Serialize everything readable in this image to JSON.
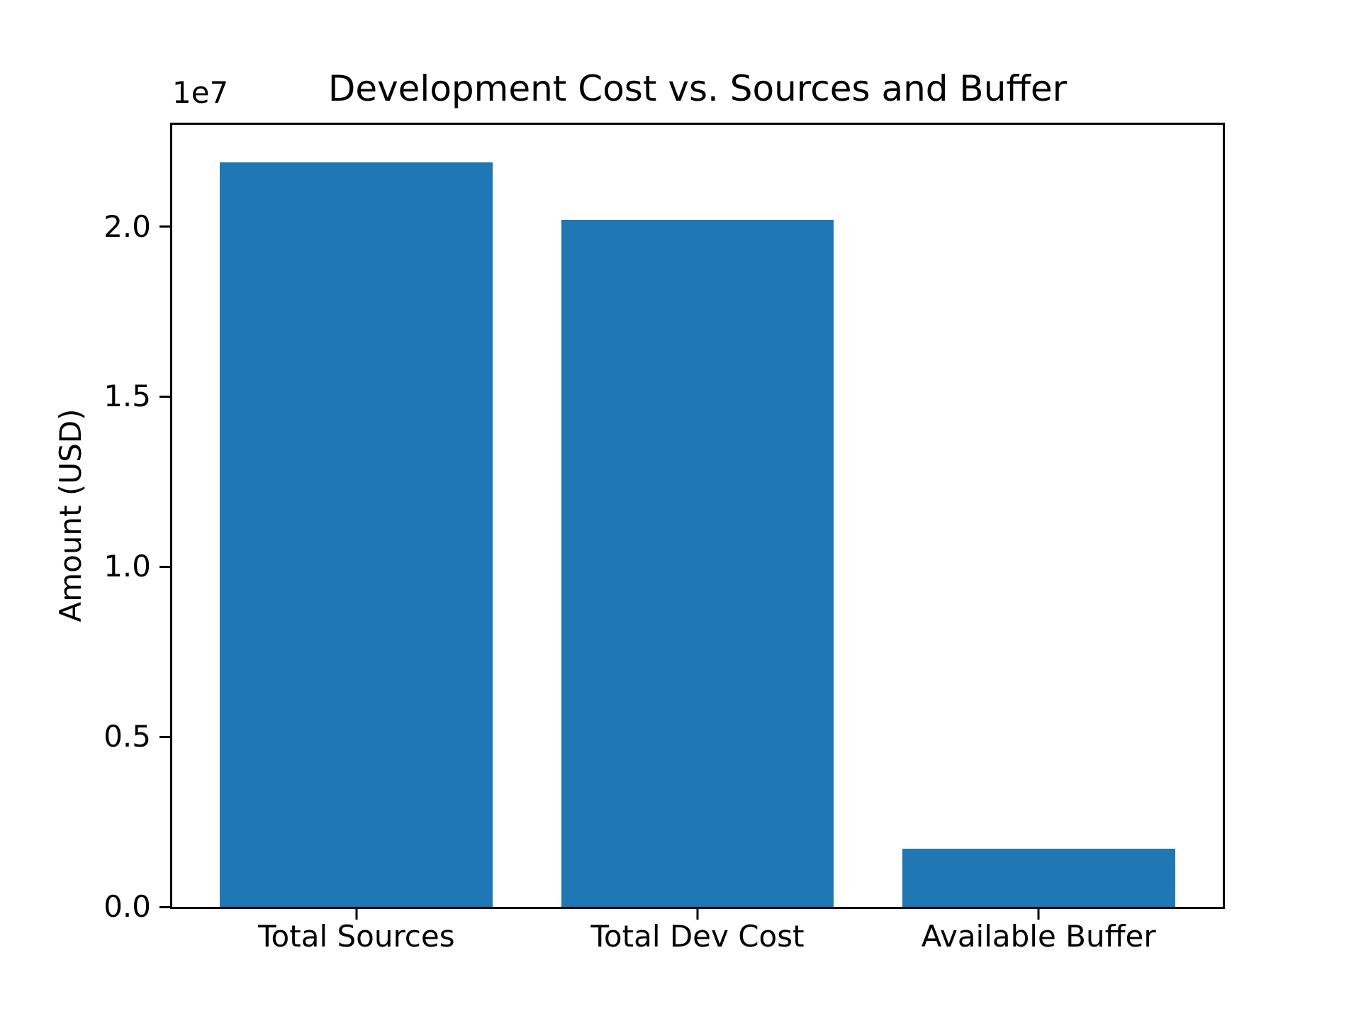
{
  "chart_data": {
    "type": "bar",
    "title": "Development Cost vs. Sources and Buffer",
    "xlabel": "",
    "ylabel": "Amount (USD)",
    "offset_text": "1e7",
    "categories": [
      "Total Sources",
      "Total Dev Cost",
      "Available Buffer"
    ],
    "values": [
      21900000,
      20200000,
      1700000
    ],
    "bar_color": "#1f77b4",
    "ylim": [
      0,
      22995000
    ],
    "yticks": {
      "values": [
        0,
        5000000,
        10000000,
        15000000,
        20000000
      ],
      "labels": [
        "0.0",
        "0.5",
        "1.0",
        "1.5",
        "2.0"
      ]
    },
    "bar_width": 0.8,
    "x_margin": 0.05,
    "grid": false,
    "legend": null,
    "axes_color": "#000000",
    "background_color": "#ffffff"
  }
}
